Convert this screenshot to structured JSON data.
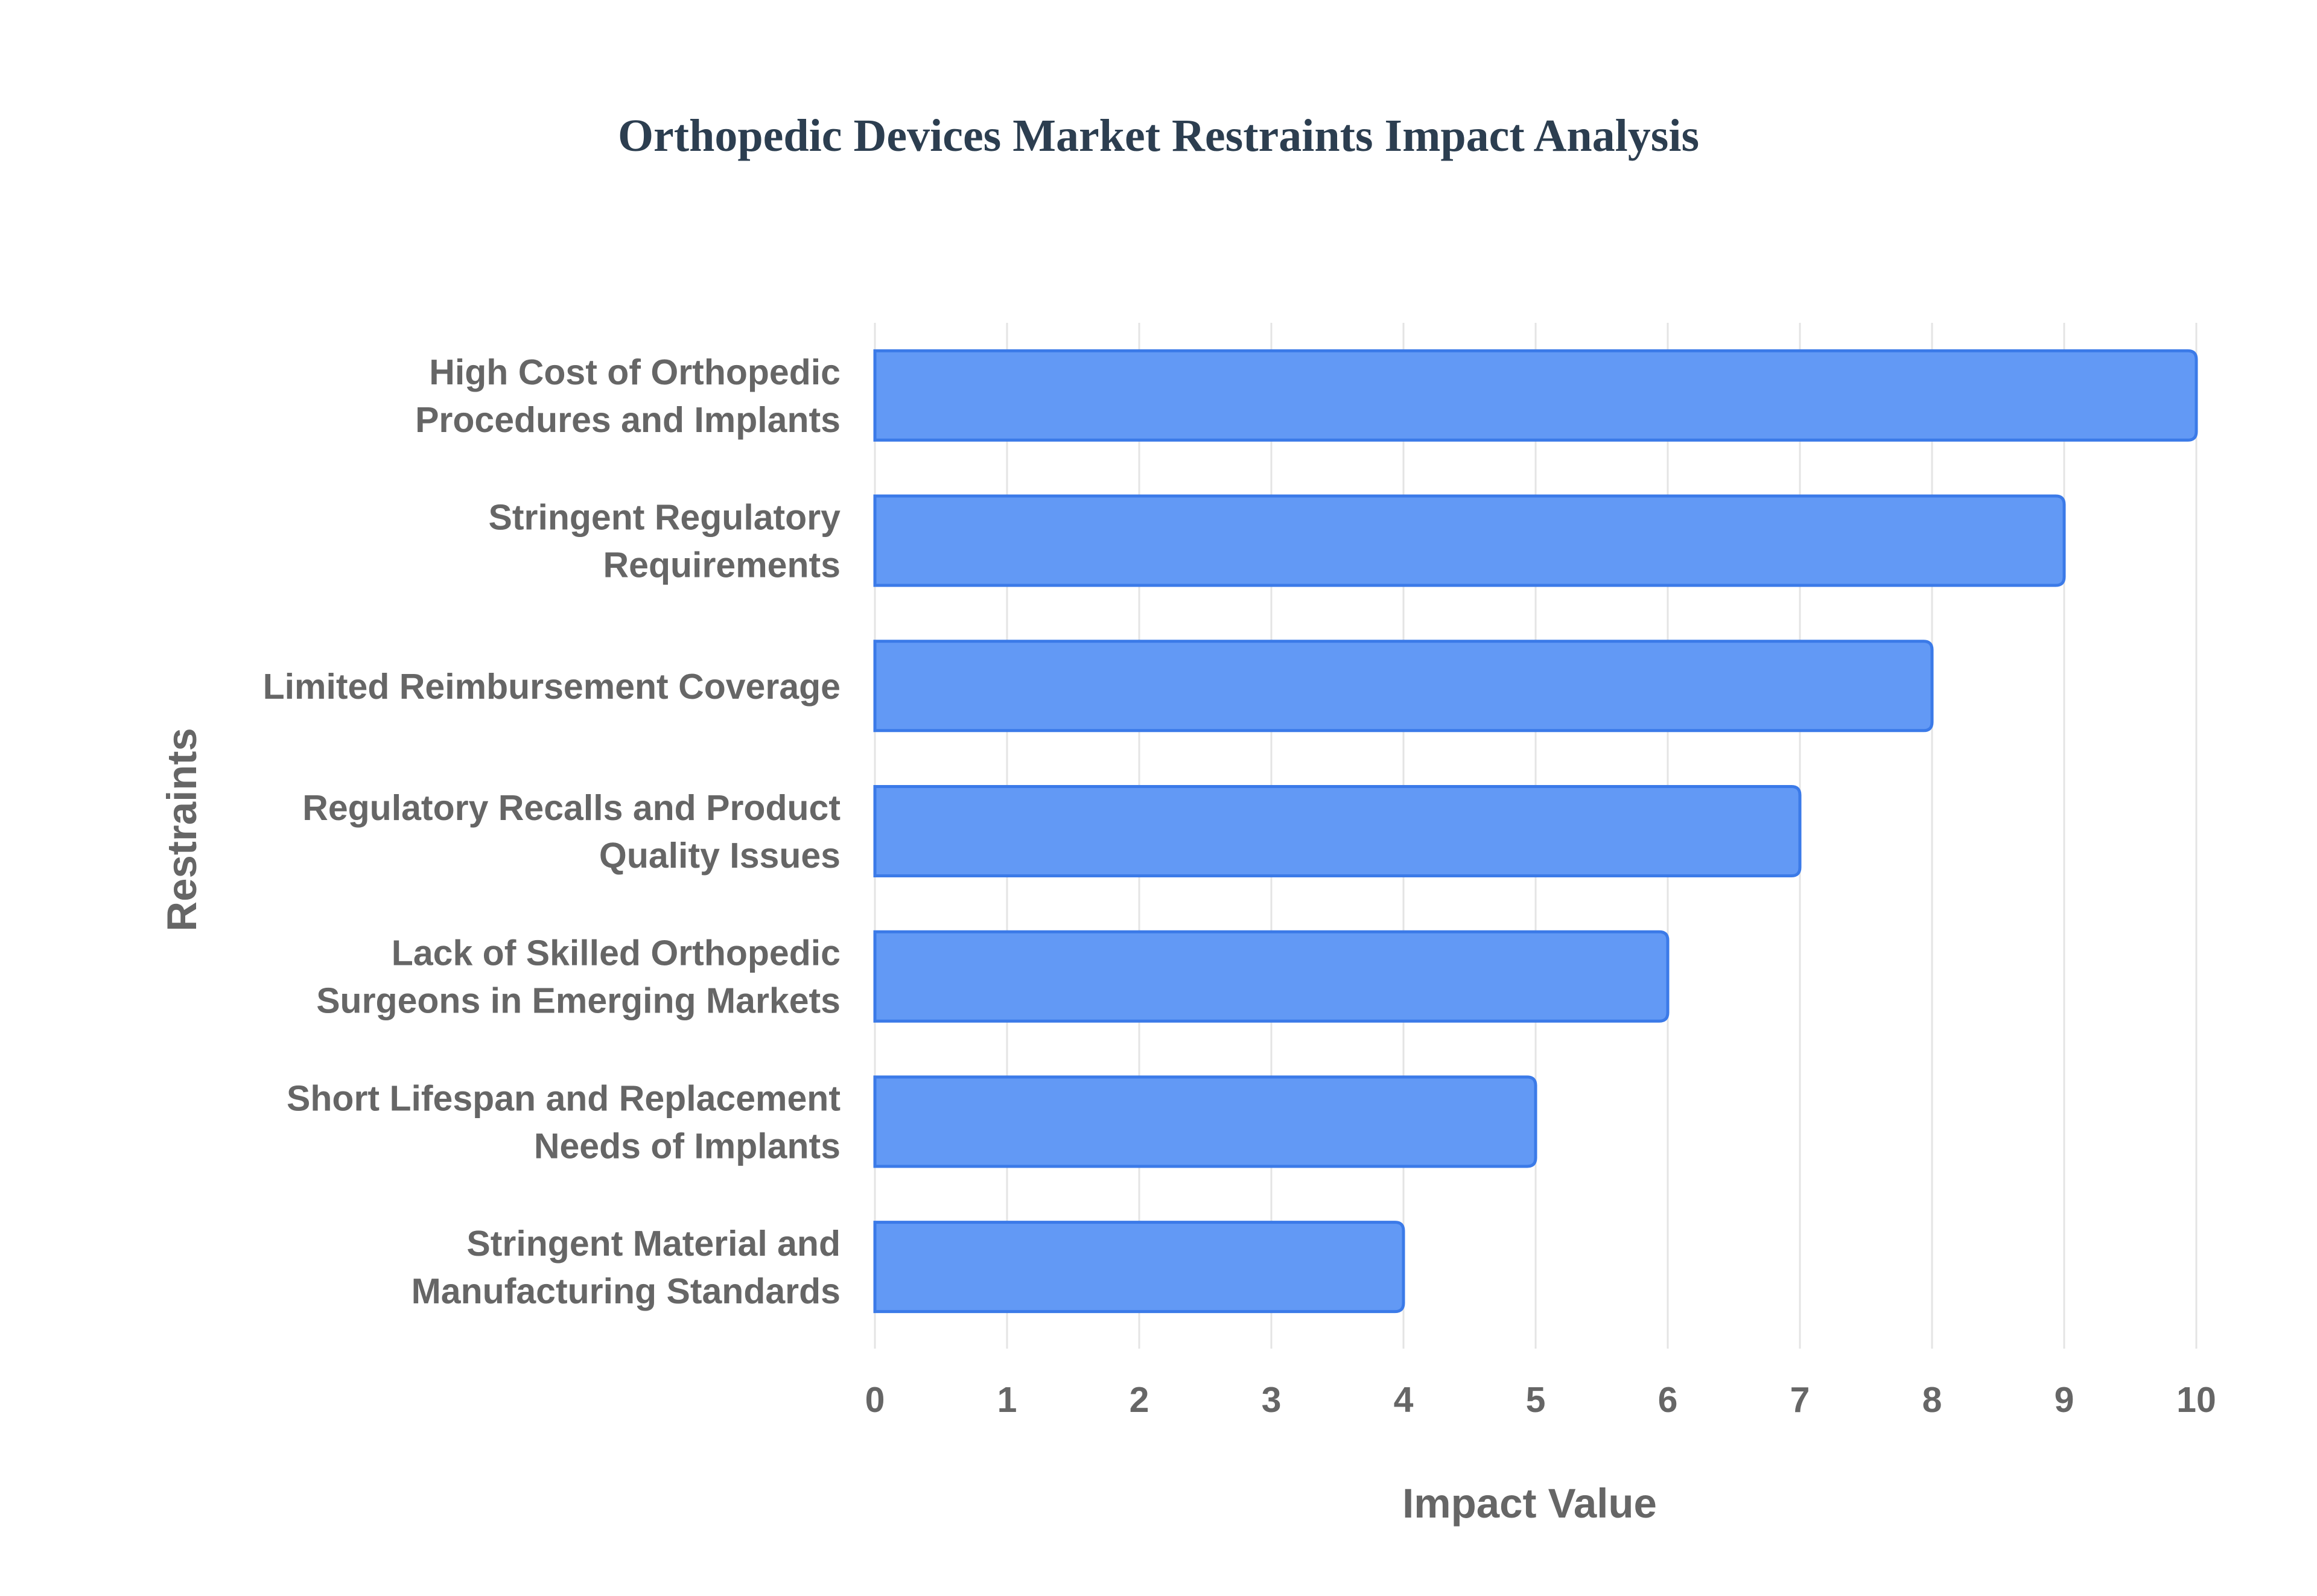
{
  "chart_data": {
    "type": "bar",
    "orientation": "horizontal",
    "title": "Orthopedic Devices Market Restraints Impact Analysis",
    "xlabel": "Impact Value",
    "ylabel": "Restraints",
    "xlim": [
      0,
      10
    ],
    "xticks": [
      "0",
      "1",
      "2",
      "3",
      "4",
      "5",
      "6",
      "7",
      "8",
      "9",
      "10"
    ],
    "grid": true,
    "categories": [
      [
        "High Cost of Orthopedic",
        "Procedures and Implants"
      ],
      [
        "Stringent Regulatory",
        "Requirements"
      ],
      [
        "Limited Reimbursement Coverage"
      ],
      [
        "Regulatory Recalls and Product",
        "Quality Issues"
      ],
      [
        "Lack of Skilled Orthopedic",
        "Surgeons in Emerging Markets"
      ],
      [
        "Short Lifespan and Replacement",
        "Needs of Implants"
      ],
      [
        "Stringent Material and",
        "Manufacturing Standards"
      ]
    ],
    "values": [
      10,
      9,
      8,
      7,
      6,
      5,
      4
    ],
    "colors": {
      "bar_fill": "#6299f5",
      "bar_border": "#3b7ae8",
      "title": "#2c3e50",
      "text": "#666666",
      "grid": "#e4e4e4"
    }
  }
}
